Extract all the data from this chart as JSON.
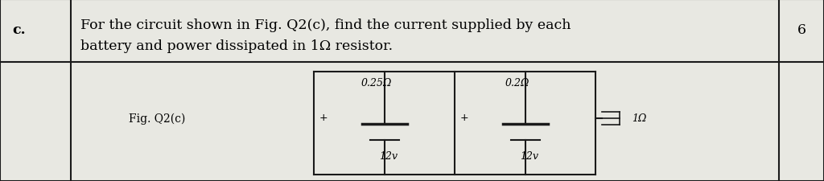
{
  "bg_color": "#e8e8e2",
  "text_c": "c.",
  "main_text_line1": "For the circuit shown in Fig. Q2(c), find the current supplied by each",
  "main_text_line2": "battery and power dissipated in 1Ω resistor.",
  "marks": "6",
  "fig_label": "Fig. Q2(c)",
  "r1_label": "0.25Ω",
  "r2_label": "0.2Ω",
  "r3_label": "1Ω",
  "v1_label": "12v",
  "v2_label": "12v",
  "font_size_main": 12.5,
  "font_size_small": 9
}
